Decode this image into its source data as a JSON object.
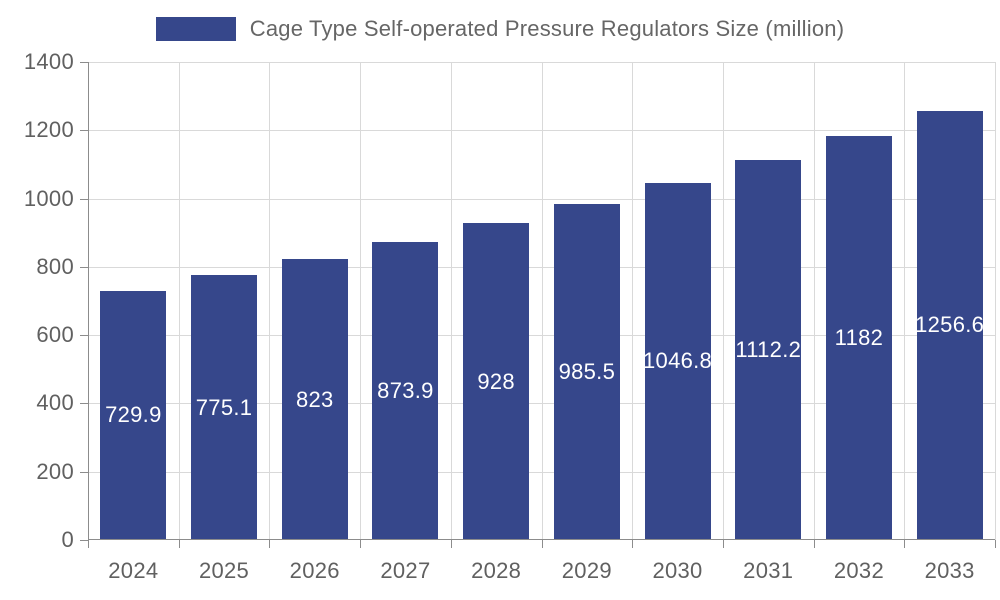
{
  "legend": {
    "label": "Cage Type Self-operated Pressure Regulators Size (million)"
  },
  "chart_data": {
    "type": "bar",
    "title": "Cage Type Self-operated Pressure Regulators Size (million)",
    "categories": [
      "2024",
      "2025",
      "2026",
      "2027",
      "2028",
      "2029",
      "2030",
      "2031",
      "2032",
      "2033"
    ],
    "values": [
      729.9,
      775.1,
      823,
      873.9,
      928,
      985.5,
      1046.8,
      1112.2,
      1182,
      1256.6
    ],
    "series": [
      {
        "name": "Cage Type Self-operated Pressure Regulators Size (million)",
        "values": [
          729.9,
          775.1,
          823,
          873.9,
          928,
          985.5,
          1046.8,
          1112.2,
          1182,
          1256.6
        ]
      }
    ],
    "xlabel": "",
    "ylabel": "",
    "ylim": [
      0,
      1400
    ],
    "yticks": [
      0,
      200,
      400,
      600,
      800,
      1000,
      1200,
      1400
    ],
    "grid": true,
    "legend_position": "top",
    "colors": {
      "bar": "#36478B",
      "value_label": "#FFFFFF",
      "gridline": "#D9D9D9",
      "axis_line": "#8C8C8C",
      "tick_label": "#606060",
      "title": "#666666",
      "background": "#FFFFFF"
    }
  }
}
